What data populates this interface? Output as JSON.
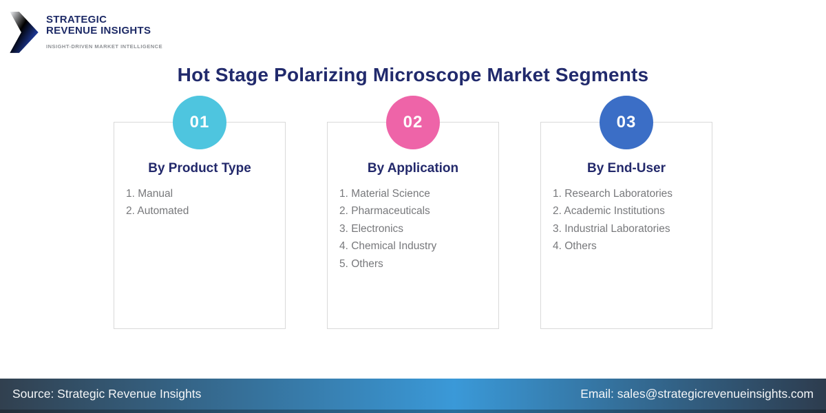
{
  "brand": {
    "name_line1": "STRATEGIC",
    "name_line2": "REVENUE INSIGHTS",
    "tagline": "INSIGHT-DRIVEN MARKET INTELLIGENCE",
    "logo_gradient_from": "#f4f6f9",
    "logo_gradient_to": "#2a52d9"
  },
  "page": {
    "title": "Hot Stage Polarizing Microscope Market Segments",
    "title_color": "#212a6c"
  },
  "cards": [
    {
      "number": "01",
      "badge_color": "#4ec5df",
      "title": "By Product Type",
      "items": [
        "1. Manual",
        "2. Automated"
      ]
    },
    {
      "number": "02",
      "badge_color": "#ee64a8",
      "title": "By Application",
      "items": [
        "1. Material Science",
        "2. Pharmaceuticals",
        "3. Electronics",
        "4. Chemical Industry",
        "5. Others"
      ]
    },
    {
      "number": "03",
      "badge_color": "#3b6ec6",
      "title": "By End-User",
      "items": [
        "1. Research Laboratories",
        "2. Academic Institutions",
        "3. Industrial Laboratories",
        "4. Others"
      ]
    }
  ],
  "footer": {
    "source": "Source: Strategic Revenue Insights",
    "email": "Email: sales@strategicrevenueinsights.com",
    "gradient_colors": [
      "#31404f",
      "#3a99d8",
      "#2d3c4e"
    ]
  }
}
